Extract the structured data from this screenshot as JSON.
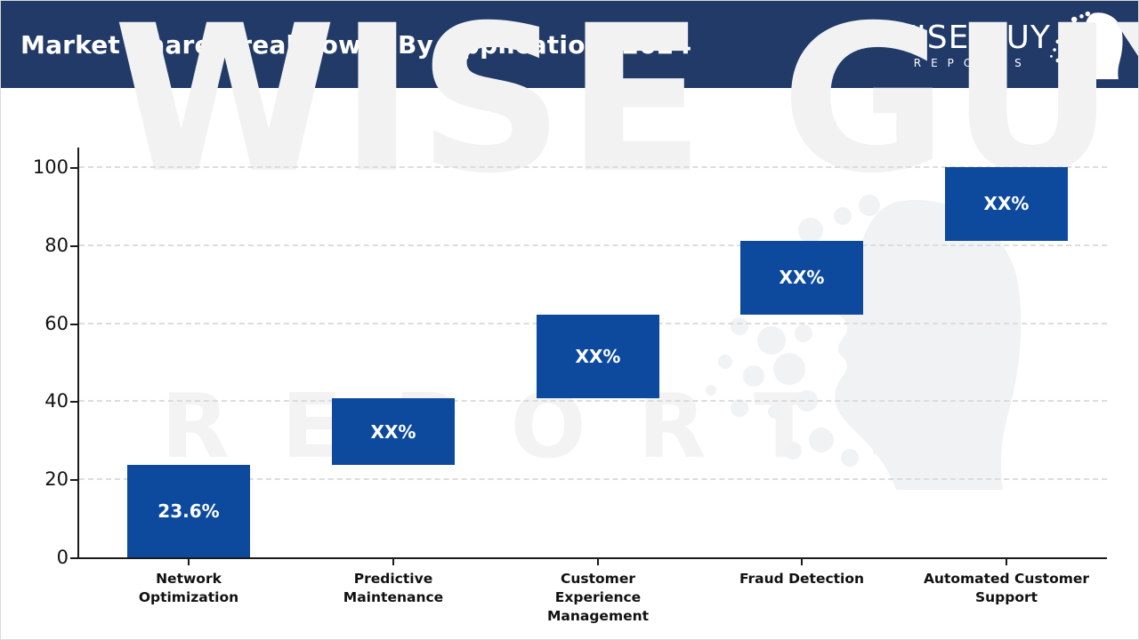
{
  "header": {
    "title": "Market Share Breakdown, By Application, 2024",
    "logo": {
      "wordmark": "WISE GUY",
      "subtext": "REPORTS"
    }
  },
  "watermark": {
    "wordmark": "WISE GUY",
    "subtext": "REPORTS"
  },
  "chart_data": {
    "type": "bar",
    "subtype": "floating-waterfall",
    "title": "Market Share Breakdown, By Application, 2024",
    "categories": [
      "Network\nOptimization",
      "Predictive\nMaintenance",
      "Customer\nExperience\nManagement",
      "Fraud Detection",
      "Automated Customer\nSupport"
    ],
    "segments": [
      {
        "category": "Network Optimization",
        "start": 0,
        "end": 23.6,
        "label": "23.6%"
      },
      {
        "category": "Predictive Maintenance",
        "start": 23.6,
        "end": 40.7,
        "label": "XX%"
      },
      {
        "category": "Customer Experience Management",
        "start": 40.7,
        "end": 62.2,
        "label": "XX%"
      },
      {
        "category": "Fraud Detection",
        "start": 62.2,
        "end": 81.2,
        "label": "XX%"
      },
      {
        "category": "Automated Customer Support",
        "start": 81.2,
        "end": 100,
        "label": "XX%"
      }
    ],
    "xlabel": "",
    "ylabel": "",
    "ylim": [
      0,
      100
    ],
    "yticks": [
      0,
      20,
      40,
      60,
      80,
      100
    ],
    "grid": "dashed-horizontal",
    "legend": "none",
    "colors": {
      "bar": "#0d4a9e",
      "bar_label": "#ffffff",
      "axis": "#1a1a1a",
      "grid": "#dcdcdc",
      "header_bg": "#213a67",
      "header_text": "#ffffff",
      "watermark": "#f2f2f3"
    }
  }
}
